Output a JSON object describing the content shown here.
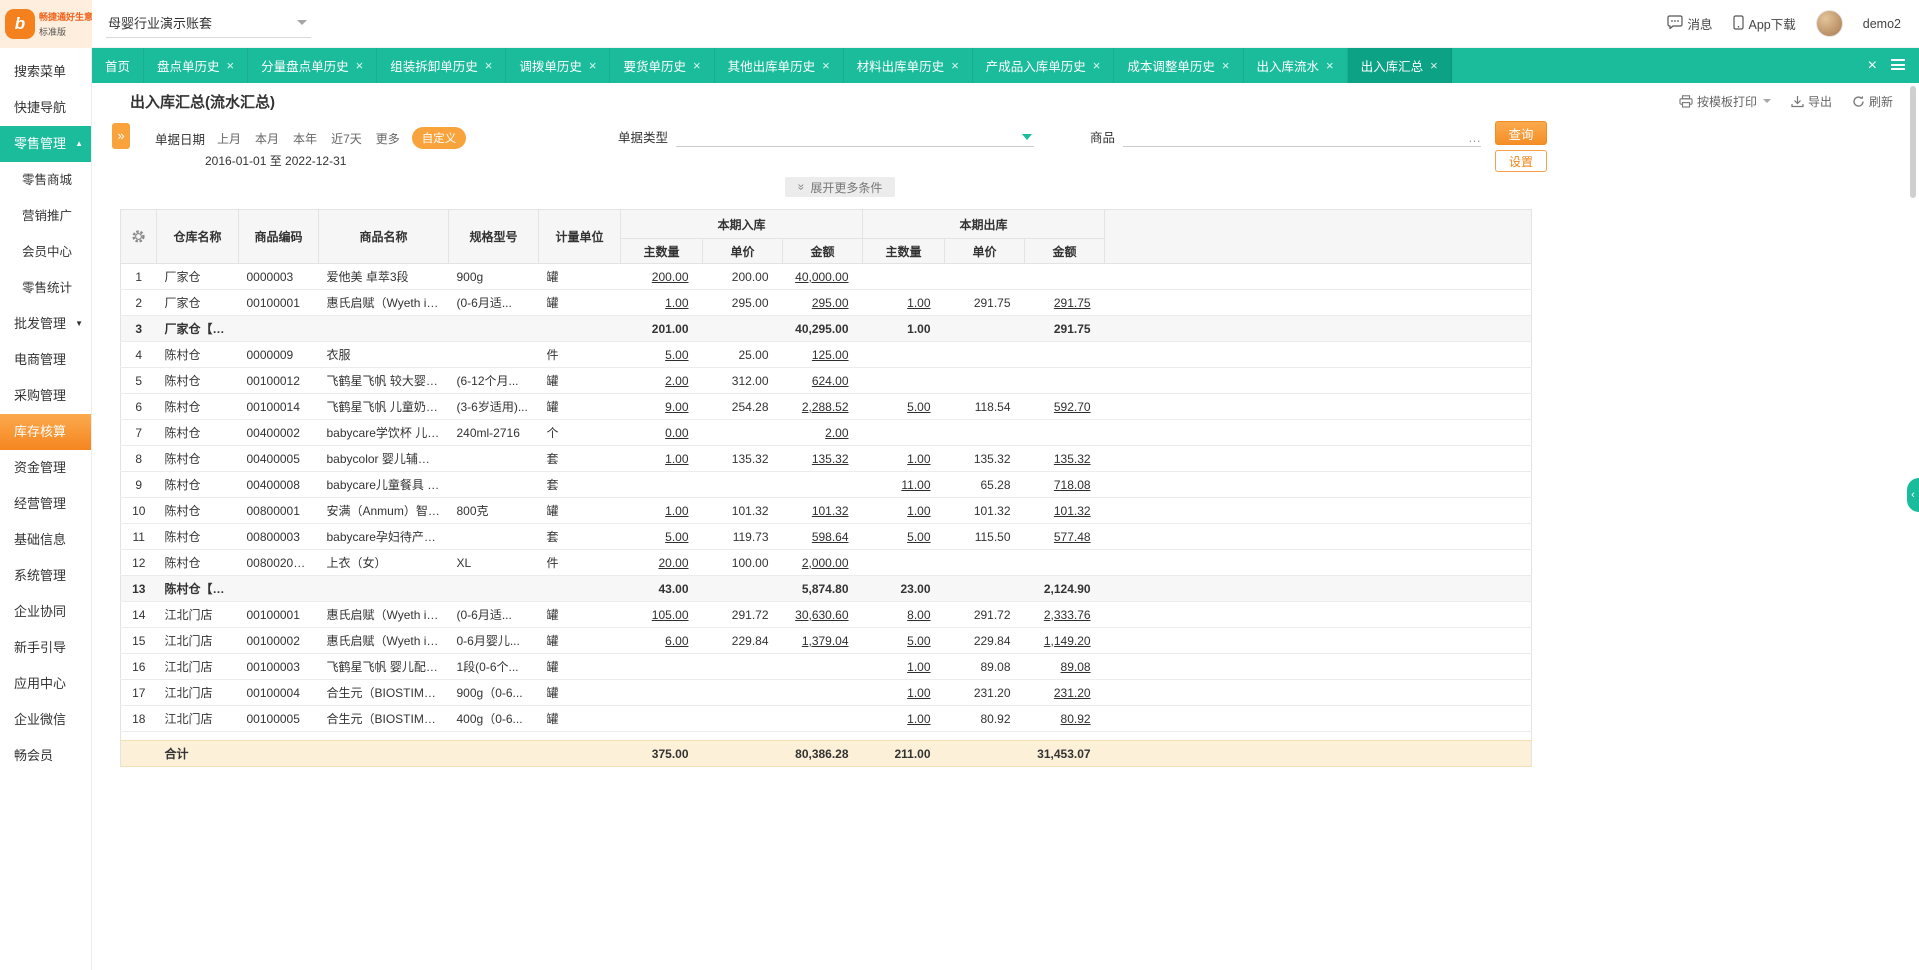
{
  "colors": {
    "teal": "#1abc9c",
    "teal_active_tab": "#0ca285",
    "orange": "#f9a33d",
    "orange_dark": "#f58f28",
    "total_row_bg": "#fcf0d9",
    "subtotal_row_bg": "#f7f7f7"
  },
  "glyphs": {
    "collapse": "»",
    "expand_chevrons": "»",
    "close": "×",
    "arrow_up": "▲",
    "arrow_down": "▼",
    "dots": "…",
    "handle_arrow": "‹"
  },
  "brand": {
    "logo_text": "畅捷通好生意",
    "edition": "标准版"
  },
  "topbar": {
    "account_select": "母婴行业演示账套",
    "messages": "消息",
    "app_download": "App下载",
    "username": "demo2"
  },
  "tabbar": {
    "tabs": [
      {
        "id": "home",
        "label": "首页",
        "closable": false,
        "active": false
      },
      {
        "id": "count-history",
        "label": "盘点单历史",
        "closable": true,
        "active": false
      },
      {
        "id": "partial-count-history",
        "label": "分量盘点单历史",
        "closable": true,
        "active": false
      },
      {
        "id": "assembly-history",
        "label": "组装拆卸单历史",
        "closable": true,
        "active": false
      },
      {
        "id": "transfer-history",
        "label": "调拨单历史",
        "closable": true,
        "active": false
      },
      {
        "id": "requisition-history",
        "label": "要货单历史",
        "closable": true,
        "active": false
      },
      {
        "id": "other-outbound-history",
        "label": "其他出库单历史",
        "closable": true,
        "active": false
      },
      {
        "id": "material-outbound-history",
        "label": "材料出库单历史",
        "closable": true,
        "active": false
      },
      {
        "id": "finished-inbound-history",
        "label": "产成品入库单历史",
        "closable": true,
        "active": false
      },
      {
        "id": "cost-adjust-history",
        "label": "成本调整单历史",
        "closable": true,
        "active": false
      },
      {
        "id": "inout-flow",
        "label": "出入库流水",
        "closable": true,
        "active": false
      },
      {
        "id": "inout-summary",
        "label": "出入库汇总",
        "closable": true,
        "active": true
      }
    ]
  },
  "sidebar": {
    "items": [
      {
        "id": "search-menu",
        "label": "搜索菜单",
        "style": ""
      },
      {
        "id": "quick-nav",
        "label": "快捷导航",
        "style": ""
      },
      {
        "id": "retail-mgmt",
        "label": "零售管理",
        "style": "teal",
        "arrow": "up"
      },
      {
        "id": "retail-mall",
        "label": "零售商城",
        "style": "sub"
      },
      {
        "id": "marketing",
        "label": "营销推广",
        "style": "sub"
      },
      {
        "id": "member-center",
        "label": "会员中心",
        "style": "sub"
      },
      {
        "id": "retail-stats",
        "label": "零售统计",
        "style": "sub"
      },
      {
        "id": "wholesale-mgmt",
        "label": "批发管理",
        "style": "",
        "arrow": "down"
      },
      {
        "id": "ecommerce-mgmt",
        "label": "电商管理",
        "style": ""
      },
      {
        "id": "purchase-mgmt",
        "label": "采购管理",
        "style": ""
      },
      {
        "id": "inventory-accounting",
        "label": "库存核算",
        "style": "orange"
      },
      {
        "id": "funds-mgmt",
        "label": "资金管理",
        "style": ""
      },
      {
        "id": "operation-mgmt",
        "label": "经营管理",
        "style": ""
      },
      {
        "id": "base-info",
        "label": "基础信息",
        "style": ""
      },
      {
        "id": "system-mgmt",
        "label": "系统管理",
        "style": ""
      },
      {
        "id": "enterprise-collab",
        "label": "企业协同",
        "style": ""
      },
      {
        "id": "beginner-guide",
        "label": "新手引导",
        "style": ""
      },
      {
        "id": "app-center",
        "label": "应用中心",
        "style": ""
      },
      {
        "id": "enterprise-wechat",
        "label": "企业微信",
        "style": ""
      },
      {
        "id": "chang-member",
        "label": "畅会员",
        "style": ""
      }
    ]
  },
  "page": {
    "title": "出入库汇总(流水汇总)",
    "actions": {
      "print": "按模板打印",
      "export": "导出",
      "refresh": "刷新"
    }
  },
  "filters": {
    "date_label": "单据日期",
    "date_shortcuts": [
      "上月",
      "本月",
      "本年",
      "近7天",
      "更多"
    ],
    "custom_label": "自定义",
    "date_range": "2016-01-01 至 2022-12-31",
    "doc_type_label": "单据类型",
    "product_label": "商品",
    "search_button": "查询",
    "settings_button": "设置",
    "expand_more": "展开更多条件"
  },
  "table": {
    "headers": {
      "warehouse": "仓库名称",
      "code": "商品编码",
      "name": "商品名称",
      "spec": "规格型号",
      "unit": "计量单位",
      "inbound": "本期入库",
      "outbound": "本期出库",
      "qty": "主数量",
      "price": "单价",
      "amount": "金额"
    },
    "rows": [
      {
        "type": "data",
        "no": "1",
        "warehouse": "厂家仓",
        "code": "0000003",
        "name": "爱他美 卓萃3段",
        "spec": "900g",
        "unit": "罐",
        "in_qty": "200.00",
        "in_price": "200.00",
        "in_amt": "40,000.00",
        "out_qty": "",
        "out_price": "",
        "out_amt": ""
      },
      {
        "type": "data",
        "no": "2",
        "warehouse": "厂家仓",
        "code": "00100001",
        "name": "惠氏启赋（Wyeth illu...",
        "spec": "(0-6月适...",
        "unit": "罐",
        "in_qty": "1.00",
        "in_price": "295.00",
        "in_amt": "295.00",
        "out_qty": "1.00",
        "out_price": "291.75",
        "out_amt": "291.75"
      },
      {
        "type": "subtotal",
        "no": "3",
        "warehouse": "厂家仓【小...",
        "code": "",
        "name": "",
        "spec": "",
        "unit": "",
        "in_qty": "201.00",
        "in_price": "",
        "in_amt": "40,295.00",
        "out_qty": "1.00",
        "out_price": "",
        "out_amt": "291.75"
      },
      {
        "type": "data",
        "no": "4",
        "warehouse": "陈村仓",
        "code": "0000009",
        "name": "衣服",
        "spec": "",
        "unit": "件",
        "in_qty": "5.00",
        "in_price": "25.00",
        "in_amt": "125.00",
        "out_qty": "",
        "out_price": "",
        "out_amt": ""
      },
      {
        "type": "data",
        "no": "5",
        "warehouse": "陈村仓",
        "code": "00100012",
        "name": "飞鹤星飞帆 较大婴儿配...",
        "spec": "(6-12个月...",
        "unit": "罐",
        "in_qty": "2.00",
        "in_price": "312.00",
        "in_amt": "624.00",
        "out_qty": "",
        "out_price": "",
        "out_amt": ""
      },
      {
        "type": "data",
        "no": "6",
        "warehouse": "陈村仓",
        "code": "00100014",
        "name": "飞鹤星飞帆 儿童奶粉 4...",
        "spec": "(3-6岁适用)...",
        "unit": "罐",
        "in_qty": "9.00",
        "in_price": "254.28",
        "in_amt": "2,288.52",
        "out_qty": "5.00",
        "out_price": "118.54",
        "out_amt": "592.70"
      },
      {
        "type": "data",
        "no": "7",
        "warehouse": "陈村仓",
        "code": "00400002",
        "name": "babycare学饮杯 儿童...",
        "spec": "240ml-2716",
        "unit": "个",
        "in_qty": "0.00",
        "in_price": "",
        "in_amt": "2.00",
        "out_qty": "",
        "out_price": "",
        "out_amt": ""
      },
      {
        "type": "data",
        "no": "8",
        "warehouse": "陈村仓",
        "code": "00400005",
        "name": "babycolor 婴儿辅食机 ...",
        "spec": "",
        "unit": "套",
        "in_qty": "1.00",
        "in_price": "135.32",
        "in_amt": "135.32",
        "out_qty": "1.00",
        "out_price": "135.32",
        "out_amt": "135.32"
      },
      {
        "type": "data",
        "no": "9",
        "warehouse": "陈村仓",
        "code": "00400008",
        "name": "babycare儿童餐具 婴...",
        "spec": "",
        "unit": "套",
        "in_qty": "",
        "in_price": "",
        "in_amt": "",
        "out_qty": "11.00",
        "out_price": "65.28",
        "out_amt": "718.08"
      },
      {
        "type": "data",
        "no": "10",
        "warehouse": "陈村仓",
        "code": "00800001",
        "name": "安满（Anmum）智孕...",
        "spec": "800克",
        "unit": "罐",
        "in_qty": "1.00",
        "in_price": "101.32",
        "in_amt": "101.32",
        "out_qty": "1.00",
        "out_price": "101.32",
        "out_amt": "101.32"
      },
      {
        "type": "data",
        "no": "11",
        "warehouse": "陈村仓",
        "code": "00800003",
        "name": "babycare孕妇待产包 ...",
        "spec": "",
        "unit": "套",
        "in_qty": "5.00",
        "in_price": "119.73",
        "in_amt": "598.64",
        "out_qty": "5.00",
        "out_price": "115.50",
        "out_amt": "577.48"
      },
      {
        "type": "data",
        "no": "12",
        "warehouse": "陈村仓",
        "code": "008002000...",
        "name": "上衣（女）",
        "spec": "XL",
        "unit": "件",
        "in_qty": "20.00",
        "in_price": "100.00",
        "in_amt": "2,000.00",
        "out_qty": "",
        "out_price": "",
        "out_amt": ""
      },
      {
        "type": "subtotal",
        "no": "13",
        "warehouse": "陈村仓【小...",
        "code": "",
        "name": "",
        "spec": "",
        "unit": "",
        "in_qty": "43.00",
        "in_price": "",
        "in_amt": "5,874.80",
        "out_qty": "23.00",
        "out_price": "",
        "out_amt": "2,124.90"
      },
      {
        "type": "data",
        "no": "14",
        "warehouse": "江北门店",
        "code": "00100001",
        "name": "惠氏启赋（Wyeth illu...",
        "spec": "(0-6月适...",
        "unit": "罐",
        "in_qty": "105.00",
        "in_price": "291.72",
        "in_amt": "30,630.60",
        "out_qty": "8.00",
        "out_price": "291.72",
        "out_amt": "2,333.76"
      },
      {
        "type": "data",
        "no": "15",
        "warehouse": "江北门店",
        "code": "00100002",
        "name": "惠氏启赋（Wyeth illu...",
        "spec": "0-6月婴儿...",
        "unit": "罐",
        "in_qty": "6.00",
        "in_price": "229.84",
        "in_amt": "1,379.04",
        "out_qty": "5.00",
        "out_price": "229.84",
        "out_amt": "1,149.20"
      },
      {
        "type": "data",
        "no": "16",
        "warehouse": "江北门店",
        "code": "00100003",
        "name": "飞鹤星飞帆 婴儿配方奶...",
        "spec": "1段(0-6个...",
        "unit": "罐",
        "in_qty": "",
        "in_price": "",
        "in_amt": "",
        "out_qty": "1.00",
        "out_price": "89.08",
        "out_amt": "89.08"
      },
      {
        "type": "data",
        "no": "17",
        "warehouse": "江北门店",
        "code": "00100004",
        "name": "合生元（BIOSTIME）...",
        "spec": "900g（0-6...",
        "unit": "罐",
        "in_qty": "",
        "in_price": "",
        "in_amt": "",
        "out_qty": "1.00",
        "out_price": "231.20",
        "out_amt": "231.20"
      },
      {
        "type": "data",
        "no": "18",
        "warehouse": "江北门店",
        "code": "00100005",
        "name": "合生元（BIOSTIME）...",
        "spec": "400g（0-6...",
        "unit": "罐",
        "in_qty": "",
        "in_price": "",
        "in_amt": "",
        "out_qty": "1.00",
        "out_price": "80.92",
        "out_amt": "80.92"
      }
    ],
    "footer": {
      "label": "合计",
      "in_qty": "375.00",
      "in_amt": "80,386.28",
      "out_qty": "211.00",
      "out_amt": "31,453.07"
    }
  }
}
